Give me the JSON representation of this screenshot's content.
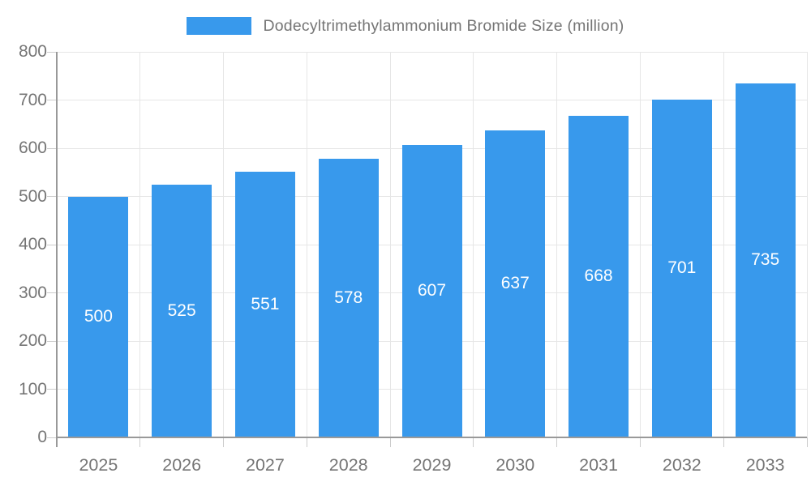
{
  "chart_data": {
    "type": "bar",
    "title": "Dodecyltrimethylammonium Bromide Size (million)",
    "categories": [
      "2025",
      "2026",
      "2027",
      "2028",
      "2029",
      "2030",
      "2031",
      "2032",
      "2033"
    ],
    "series": [
      {
        "name": "Dodecyltrimethylammonium Bromide Size (million)",
        "values": [
          500,
          525,
          551,
          578,
          607,
          637,
          668,
          701,
          735
        ]
      }
    ],
    "bar_value_labels": [
      "500",
      "525",
      "551",
      "578",
      "607",
      "637",
      "668",
      "701",
      "735"
    ],
    "ylim": [
      0,
      800
    ],
    "yticks": [
      0,
      100,
      200,
      300,
      400,
      500,
      600,
      700,
      800
    ],
    "grid": true,
    "legend_position": "top",
    "colors": {
      "bar": "#3899EC",
      "value_label": "#FFFFFF",
      "axis_text": "#757575",
      "title_text": "#757575",
      "grid_line": "#E6E6E6",
      "axis_line": "#999999",
      "tick_mark": "#CCCCCC"
    }
  }
}
